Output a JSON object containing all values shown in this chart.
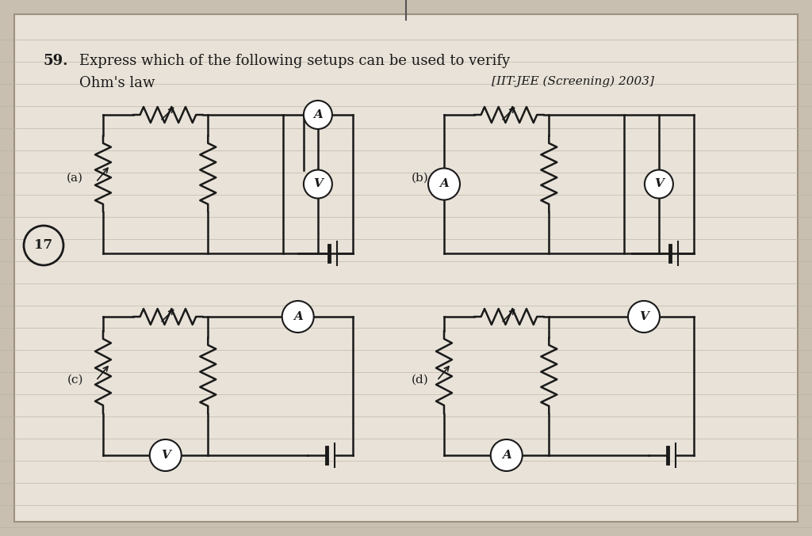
{
  "bg_color": "#c8bfb0",
  "card_color": "#e8e2d8",
  "line_color": "#1a1a1a",
  "ruled_color": "#b8b0a0",
  "title_number": "59.",
  "title_line1": "Express which of the following setups can be used to verify",
  "title_line2": "Ohm's law",
  "title_ref": "[IIT-JEE (Screening) 2003]",
  "answer_label": "17"
}
